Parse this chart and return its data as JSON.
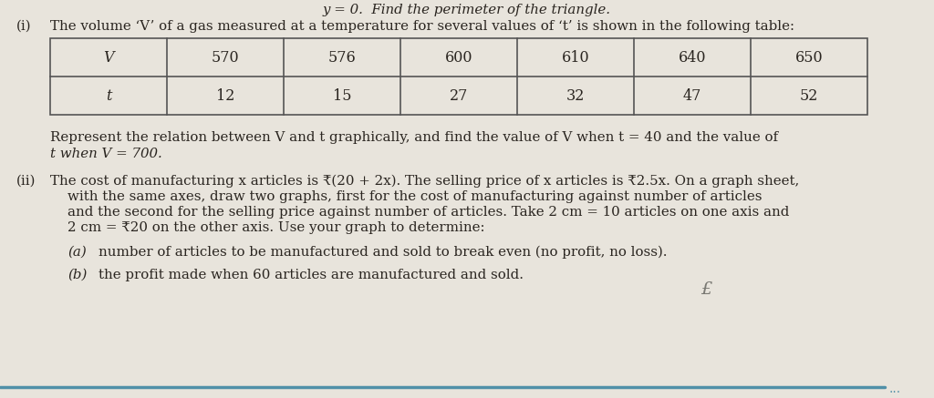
{
  "bg_color": "#e8e4dc",
  "table_V_label": "V",
  "table_t_label": "t",
  "V_values": [
    "570",
    "576",
    "600",
    "610",
    "640",
    "650"
  ],
  "t_values": [
    "12",
    "15",
    "27",
    "32",
    "47",
    "52"
  ],
  "text_color": "#2a2520",
  "table_border_color": "#555555",
  "bottom_line_color": "#5090a8",
  "font_size_main": 10.8,
  "font_size_table": 11.5,
  "top_cut_text": "y = 0.  Find the perimeter of the triangle.",
  "line_i_text": "The volume ‘V’ of a gas measured at a temperature for several values of ‘t’ is shown in the following table:",
  "para1": "Represent the relation between V and t graphically, and find the value of V when t = 40 and the value of",
  "para2": "t when V = 700.",
  "ii_line1": "The cost of manufacturing x articles is ₹(20 + 2x). The selling price of x articles is ₹2.5x. On a graph sheet,",
  "ii_line2": "with the same axes, draw two graphs, first for the cost of manufacturing against number of articles",
  "ii_line3": "and the second for the selling price against number of articles. Take 2 cm = 10 articles on one axis and",
  "ii_line4": "2 cm = ₹20 on the other axis. Use your graph to determine:",
  "sub_a_text": "number of articles to be manufactured and sold to break even (no profit, no loss).",
  "sub_b_text": "the profit made when 60 articles are manufactured and sold."
}
